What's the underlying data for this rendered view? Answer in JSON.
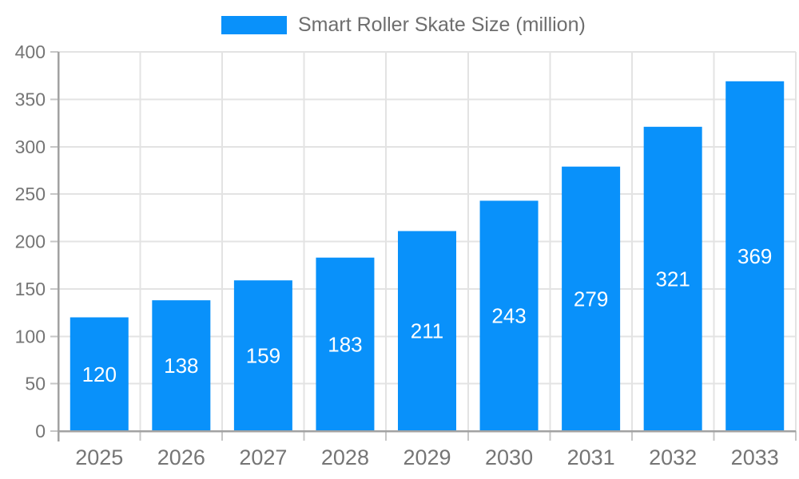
{
  "legend": {
    "label": "Smart Roller Skate Size (million)"
  },
  "colors": {
    "bar": "#0991fa",
    "grid": "#e3e3e3",
    "axis": "#a2a2a2",
    "tick": "#c6c6c6",
    "tick_label": "#757575",
    "legend_label": "#6e6e6e",
    "value_label": "#ffffff",
    "background": "#ffffff"
  },
  "chart_data": {
    "type": "bar",
    "title": "Smart Roller Skate Size (million)",
    "categories": [
      "2025",
      "2026",
      "2027",
      "2028",
      "2029",
      "2030",
      "2031",
      "2032",
      "2033"
    ],
    "values": [
      120,
      138,
      159,
      183,
      211,
      243,
      279,
      321,
      369
    ],
    "series": [
      {
        "name": "Smart Roller Skate Size (million)",
        "values": [
          120,
          138,
          159,
          183,
          211,
          243,
          279,
          321,
          369
        ]
      }
    ],
    "xlabel": "",
    "ylabel": "",
    "ylim": [
      0,
      400
    ],
    "ytick_step": 50,
    "yticks": [
      0,
      50,
      100,
      150,
      200,
      250,
      300,
      350,
      400
    ],
    "grid": true,
    "legend_position": "top-center",
    "value_labels": "inside-center"
  }
}
